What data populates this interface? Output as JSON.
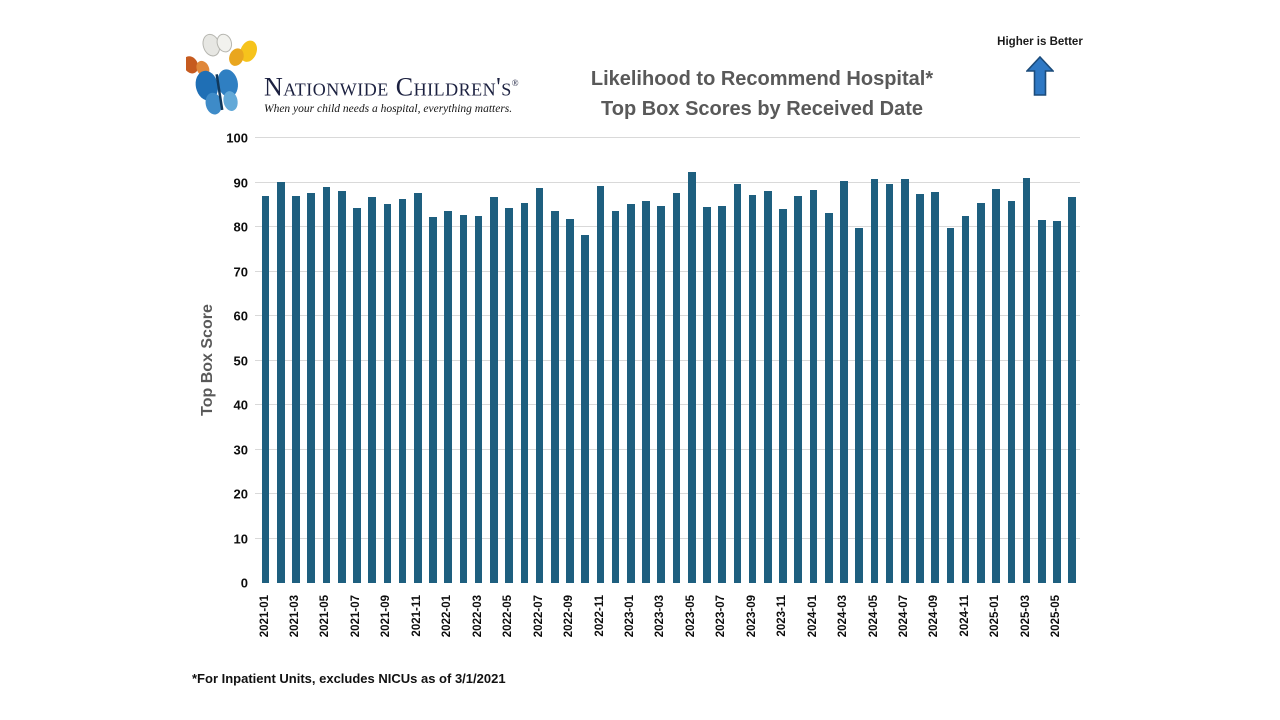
{
  "header": {
    "logo": {
      "name": "Nationwide Children's",
      "reg": "®",
      "tagline": "When your child needs a hospital, everything matters."
    },
    "title_line1": "Likelihood to Recommend Hospital*",
    "title_line2": "Top Box Scores by Received Date",
    "higher_is_better": "Higher is Better"
  },
  "chart_data": {
    "type": "bar",
    "title": "Likelihood to Recommend Hospital* Top Box Scores by Received Date",
    "xlabel": "",
    "ylabel": "Top Box Score",
    "ylim": [
      0,
      100
    ],
    "yticks": [
      0,
      10,
      20,
      30,
      40,
      50,
      60,
      70,
      80,
      90,
      100
    ],
    "grid": true,
    "legend": "none",
    "categories": [
      "2021-01",
      "2021-02",
      "2021-03",
      "2021-04",
      "2021-05",
      "2021-06",
      "2021-07",
      "2021-08",
      "2021-09",
      "2021-10",
      "2021-11",
      "2021-12",
      "2022-01",
      "2022-02",
      "2022-03",
      "2022-04",
      "2022-05",
      "2022-06",
      "2022-07",
      "2022-08",
      "2022-09",
      "2022-10",
      "2022-11",
      "2022-12",
      "2023-01",
      "2023-02",
      "2023-03",
      "2023-04",
      "2023-05",
      "2023-06",
      "2023-07",
      "2023-08",
      "2023-09",
      "2023-10",
      "2023-11",
      "2023-12",
      "2024-01",
      "2024-02",
      "2024-03",
      "2024-04",
      "2024-05",
      "2024-06",
      "2024-07",
      "2024-08",
      "2024-09",
      "2024-10",
      "2024-11",
      "2024-12",
      "2025-01",
      "2025-02",
      "2025-03",
      "2025-04",
      "2025-05",
      "2025-06"
    ],
    "values": [
      87.0,
      90.2,
      86.9,
      87.6,
      89.0,
      88.0,
      84.2,
      86.8,
      85.2,
      86.3,
      87.7,
      82.3,
      83.5,
      82.7,
      82.5,
      86.8,
      84.3,
      85.5,
      88.8,
      83.6,
      81.7,
      78.1,
      89.3,
      83.6,
      85.1,
      85.9,
      84.7,
      87.7,
      92.3,
      84.6,
      84.8,
      89.7,
      87.2,
      88.2,
      84.1,
      86.9,
      88.4,
      83.2,
      90.4,
      79.8,
      90.9,
      89.7,
      90.9,
      87.4,
      87.9,
      79.8,
      82.4,
      85.3,
      88.6,
      85.8,
      91.0,
      81.6,
      81.3,
      86.8
    ],
    "x_tick_labels": [
      "2021-01",
      "2021-03",
      "2021-05",
      "2021-07",
      "2021-09",
      "2021-11",
      "2022-01",
      "2022-03",
      "2022-05",
      "2022-07",
      "2022-09",
      "2022-11",
      "2023-01",
      "2023-03",
      "2023-05",
      "2023-07",
      "2023-09",
      "2023-11",
      "2024-01",
      "2024-03",
      "2024-05",
      "2024-07",
      "2024-09",
      "2024-11",
      "2025-01",
      "2025-03",
      "2025-05"
    ],
    "x_tick_every": 2
  },
  "colors": {
    "bar": "#1E5F7F",
    "gridline": "#D9D9D9",
    "title_text": "#595959",
    "axis_text": "#0D0D0D",
    "arrow_fill": "#2E78C4",
    "arrow_stroke": "#1B4B7A"
  },
  "footnote": "*For Inpatient Units, excludes NICUs as of 3/1/2021"
}
